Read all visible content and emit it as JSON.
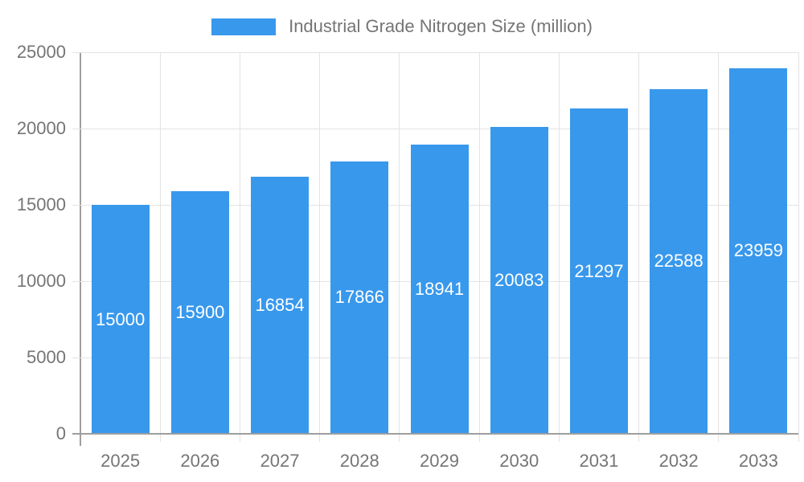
{
  "legend": {
    "label": "Industrial Grade Nitrogen Size (million)"
  },
  "chart_data": {
    "type": "bar",
    "title": "Industrial Grade Nitrogen Size (million)",
    "categories": [
      "2025",
      "2026",
      "2027",
      "2028",
      "2029",
      "2030",
      "2031",
      "2032",
      "2033"
    ],
    "series": [
      {
        "name": "Industrial Grade Nitrogen Size (million)",
        "values": [
          15000,
          15900,
          16854,
          17866,
          18941,
          20083,
          21297,
          22588,
          23959
        ]
      }
    ],
    "value_labels": [
      15000,
      15900,
      16854,
      17866,
      18941,
      20083,
      21297,
      22588,
      23959
    ],
    "value_label_position": "inside-center",
    "xlabel": "",
    "ylabel": "",
    "ylim": [
      0,
      25000
    ],
    "yticks": [
      0,
      5000,
      10000,
      15000,
      20000,
      25000
    ],
    "grid": true,
    "legend_position": "top"
  },
  "colors": {
    "bar": "#3898ec",
    "grid": "#e3e3e3",
    "axis": "#9e9e9e",
    "tick_text": "#757575",
    "bar_label_text": "#ffffff",
    "background": "#ffffff"
  }
}
